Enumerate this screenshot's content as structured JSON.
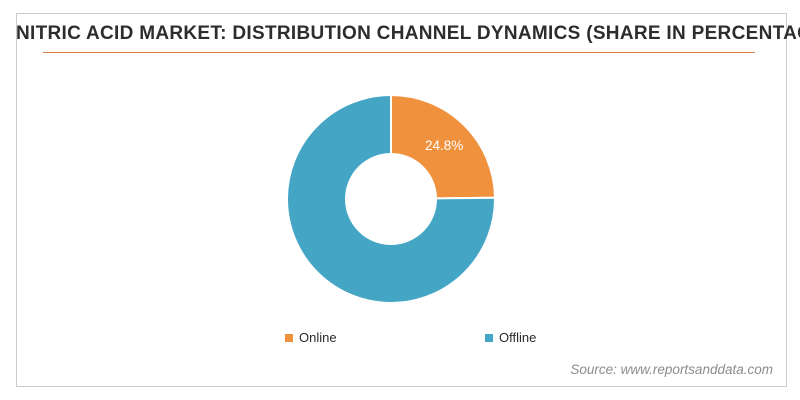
{
  "title": "NITRIC ACID MARKET: DISTRIBUTION CHANNEL DYNAMICS (SHARE IN PERCENTAGE)",
  "source_note": "Source: www.reportsanddata.com",
  "colors": {
    "online": "#F0913E",
    "offline": "#45A5C4",
    "title_text": "#2D2D2D",
    "title_rule": "#DC8052",
    "frame_border": "#CCCCCC",
    "source_text": "#8C8C8C",
    "slice_separator": "#FFFFFF",
    "data_label_text": "#FFFFFF"
  },
  "chart_data": {
    "type": "pie",
    "subtype": "donut",
    "title": "NITRIC ACID MARKET: DISTRIBUTION CHANNEL DYNAMICS (SHARE IN PERCENTAGE)",
    "categories": [
      "Online",
      "Offline"
    ],
    "values": [
      24.8,
      75.2
    ],
    "unit": "%",
    "colors": [
      "#F0913E",
      "#45A5C4"
    ],
    "data_labels": [
      {
        "slice": "Online",
        "text": "24.8%",
        "visible": true
      },
      {
        "slice": "Offline",
        "text": "",
        "visible": false
      }
    ],
    "start_angle_deg": 0,
    "direction": "clockwise",
    "inner_radius_ratio": 0.43,
    "legend_position": "bottom"
  },
  "legend": {
    "items": [
      {
        "label": "Online",
        "color": "#F0913E"
      },
      {
        "label": "Offline",
        "color": "#45A5C4"
      }
    ]
  }
}
